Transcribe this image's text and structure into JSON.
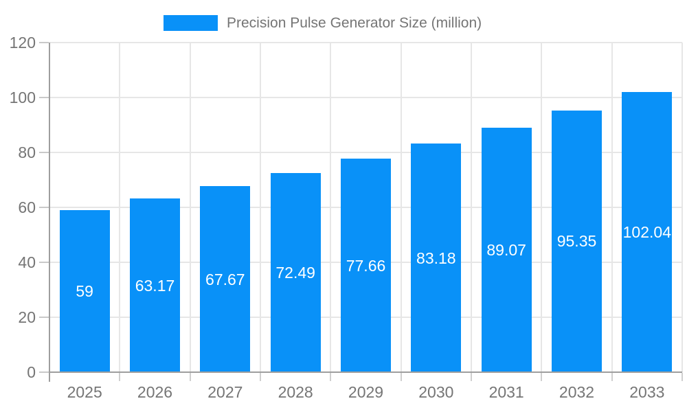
{
  "legend": {
    "label": "Precision Pulse Generator Size (million)",
    "swatch_color": "#0991f8"
  },
  "chart_data": {
    "type": "bar",
    "title": "Precision Pulse Generator Size (million)",
    "categories": [
      "2025",
      "2026",
      "2027",
      "2028",
      "2029",
      "2030",
      "2031",
      "2032",
      "2033"
    ],
    "values": [
      59,
      63.17,
      67.67,
      72.49,
      77.66,
      83.18,
      89.07,
      95.35,
      102.04
    ],
    "value_labels": [
      "59",
      "63.17",
      "67.67",
      "72.49",
      "77.66",
      "83.18",
      "89.07",
      "95.35",
      "102.04"
    ],
    "xlabel": "",
    "ylabel": "",
    "ylim": [
      0,
      120
    ],
    "yticks": [
      0,
      20,
      40,
      60,
      80,
      100,
      120
    ],
    "grid": true,
    "legend_position": "top-center",
    "colors": {
      "bar": "#0991f8",
      "value_text": "#ffffff",
      "axis": "#9e9e9e",
      "grid": "#e6e6e6",
      "tick": "#cfcfcf",
      "label_text": "#757575"
    }
  }
}
